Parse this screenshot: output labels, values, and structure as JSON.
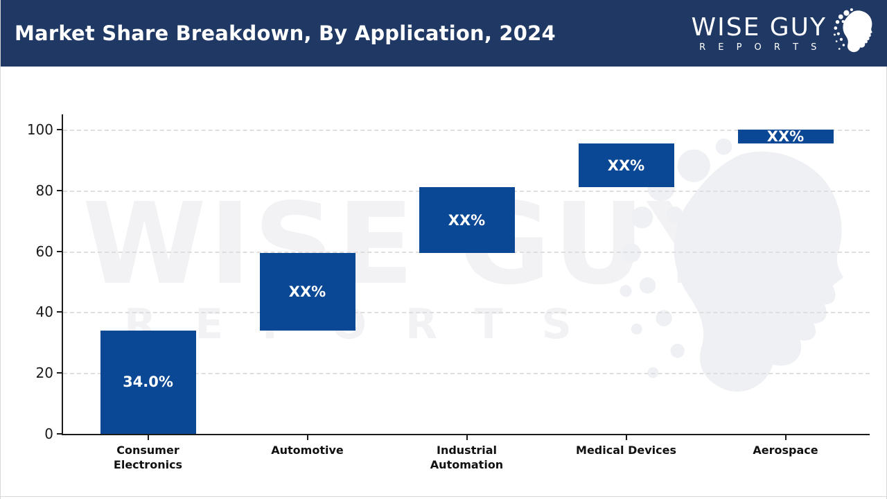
{
  "header": {
    "title": "Market Share Breakdown, By Application, 2024",
    "logo": {
      "line1": "WISE GUY",
      "line2": "R E P O R T S"
    }
  },
  "watermark": {
    "line1": "WISE GUY",
    "line2": "REPORTS"
  },
  "colors": {
    "header_bg": "#1f3864",
    "bar": "#0a4795",
    "bar_label": "#ffffff",
    "grid": "#dedede",
    "watermark": "#f2f2f5"
  },
  "chart_data": {
    "type": "bar",
    "subtype": "waterfall-stacked-segments",
    "title": "Market Share Breakdown, By Application, 2024",
    "categories": [
      [
        "Consumer",
        "Electronics"
      ],
      [
        "Automotive"
      ],
      [
        "Industrial",
        "Automation"
      ],
      [
        "Medical Devices"
      ],
      [
        "Aerospace"
      ]
    ],
    "segments": [
      {
        "category": "Consumer Electronics",
        "start": 0,
        "end": 34.0,
        "label": "34.0%"
      },
      {
        "category": "Automotive",
        "start": 34.0,
        "end": 59.5,
        "label": "XX%"
      },
      {
        "category": "Industrial Automation",
        "start": 59.5,
        "end": 81.0,
        "label": "XX%"
      },
      {
        "category": "Medical Devices",
        "start": 81.0,
        "end": 95.5,
        "label": "XX%"
      },
      {
        "category": "Aerospace",
        "start": 95.5,
        "end": 100.0,
        "label": "XX%"
      }
    ],
    "yticks": [
      0,
      20,
      40,
      60,
      80,
      100
    ],
    "ylim": [
      0,
      105
    ],
    "xlabel": "",
    "ylabel": "",
    "grid": "horizontal-dashed",
    "legend": "none"
  }
}
